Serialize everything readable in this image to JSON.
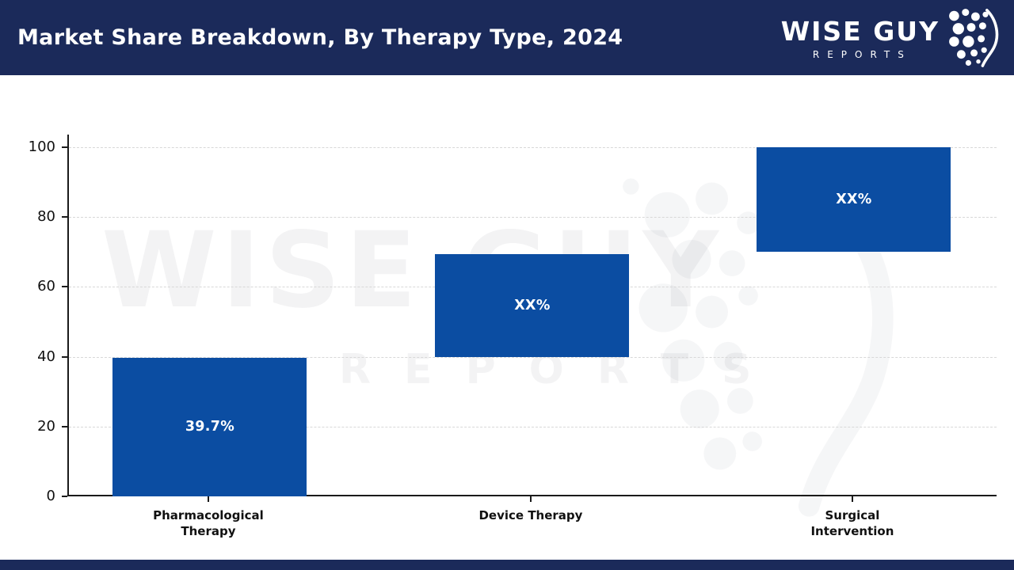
{
  "header": {
    "title": "Market Share Breakdown, By Therapy Type, 2024",
    "logo": {
      "line1": "WISE GUY",
      "line2": "REPORTS"
    }
  },
  "watermark": {
    "line1": "WISE GUY",
    "line2": "REPORTS"
  },
  "chart_data": {
    "type": "bar",
    "subtype": "floating-waterfall",
    "title": "Market Share Breakdown, By Therapy Type, 2024",
    "categories": [
      "Pharmacological Therapy",
      "Device Therapy",
      "Surgical Intervention"
    ],
    "bars": [
      {
        "category": "Pharmacological Therapy",
        "label_lines": [
          "Pharmacological",
          "Therapy"
        ],
        "start": 0,
        "end": 39.7,
        "label": "39.7%"
      },
      {
        "category": "Device Therapy",
        "label_lines": [
          "Device Therapy"
        ],
        "start": 40,
        "end": 69.5,
        "label": "XX%"
      },
      {
        "category": "Surgical Intervention",
        "label_lines": [
          "Surgical",
          "Intervention"
        ],
        "start": 70,
        "end": 100,
        "label": "XX%"
      }
    ],
    "ylim": [
      0,
      100
    ],
    "yticks": [
      0,
      20,
      40,
      60,
      80,
      100
    ],
    "grid": "horizontal-dashed",
    "legend": "none",
    "bar_color": "#0b4da2",
    "value_label_color": "#ffffff"
  },
  "colors": {
    "header_bg": "#1b2a5a",
    "footer_bg": "#1b2a5a",
    "bar": "#0b4da2",
    "axis": "#1a1a1a",
    "gridline": "#d8d8d8",
    "title_text": "#ffffff",
    "axis_text": "#111111"
  }
}
